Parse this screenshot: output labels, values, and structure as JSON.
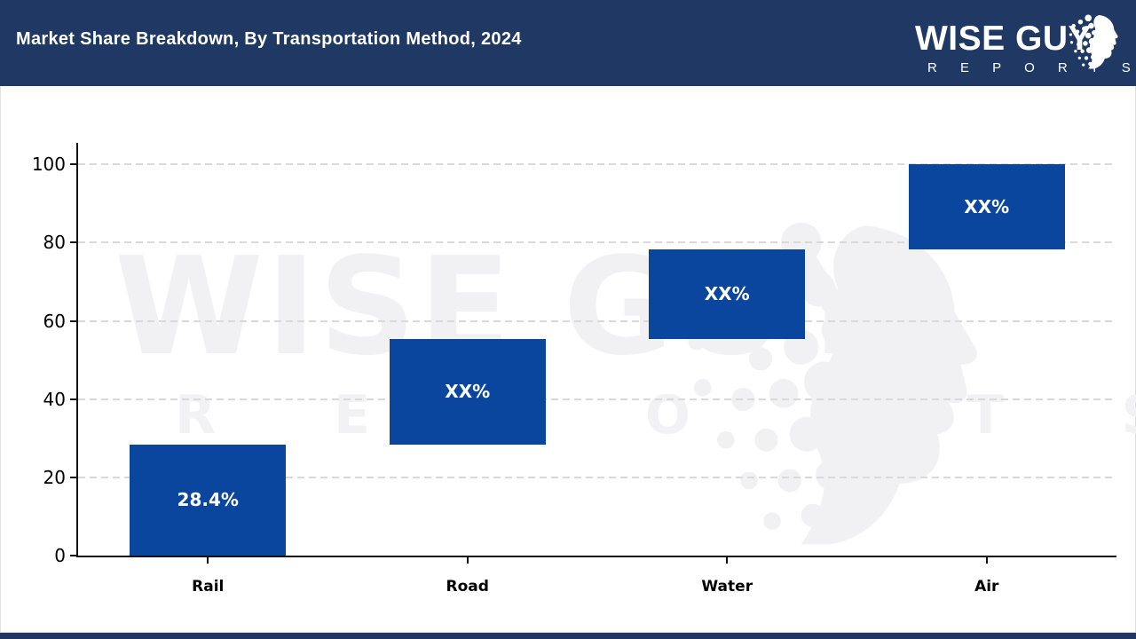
{
  "header": {
    "title": "Market Share Breakdown, By Transportation Method, 2024",
    "logo": {
      "primary": "WISE GUY",
      "secondary": "R E P O R T S"
    },
    "bg_color": "#1f3864",
    "text_color": "#ffffff"
  },
  "watermark": {
    "primary": "WISE GUY",
    "secondary": "R E P O R T S"
  },
  "chart_data": {
    "type": "waterfall",
    "title": "Market Share Breakdown, By Transportation Method, 2024",
    "categories": [
      "Rail",
      "Road",
      "Water",
      "Air"
    ],
    "segments": [
      {
        "category": "Rail",
        "start": 0,
        "end": 28.4,
        "label": "28.4%"
      },
      {
        "category": "Road",
        "start": 28.4,
        "end": 55.4,
        "label": "XX%"
      },
      {
        "category": "Water",
        "start": 55.4,
        "end": 78.3,
        "label": "XX%"
      },
      {
        "category": "Air",
        "start": 78.3,
        "end": 100,
        "label": "XX%"
      }
    ],
    "yticks": [
      0,
      20,
      40,
      60,
      80,
      100
    ],
    "ylim": [
      0,
      105.5
    ],
    "xlabel": "",
    "ylabel": "",
    "legend": "none",
    "grid": {
      "axis": "y",
      "style": "dashed",
      "color": "#d9d9d9"
    },
    "colors": {
      "bar": "#0b469e",
      "bar_label": "#ffffff",
      "axis": "#111111",
      "tick_label": "#000000"
    }
  },
  "footer": {
    "bg_color": "#1f3864"
  }
}
